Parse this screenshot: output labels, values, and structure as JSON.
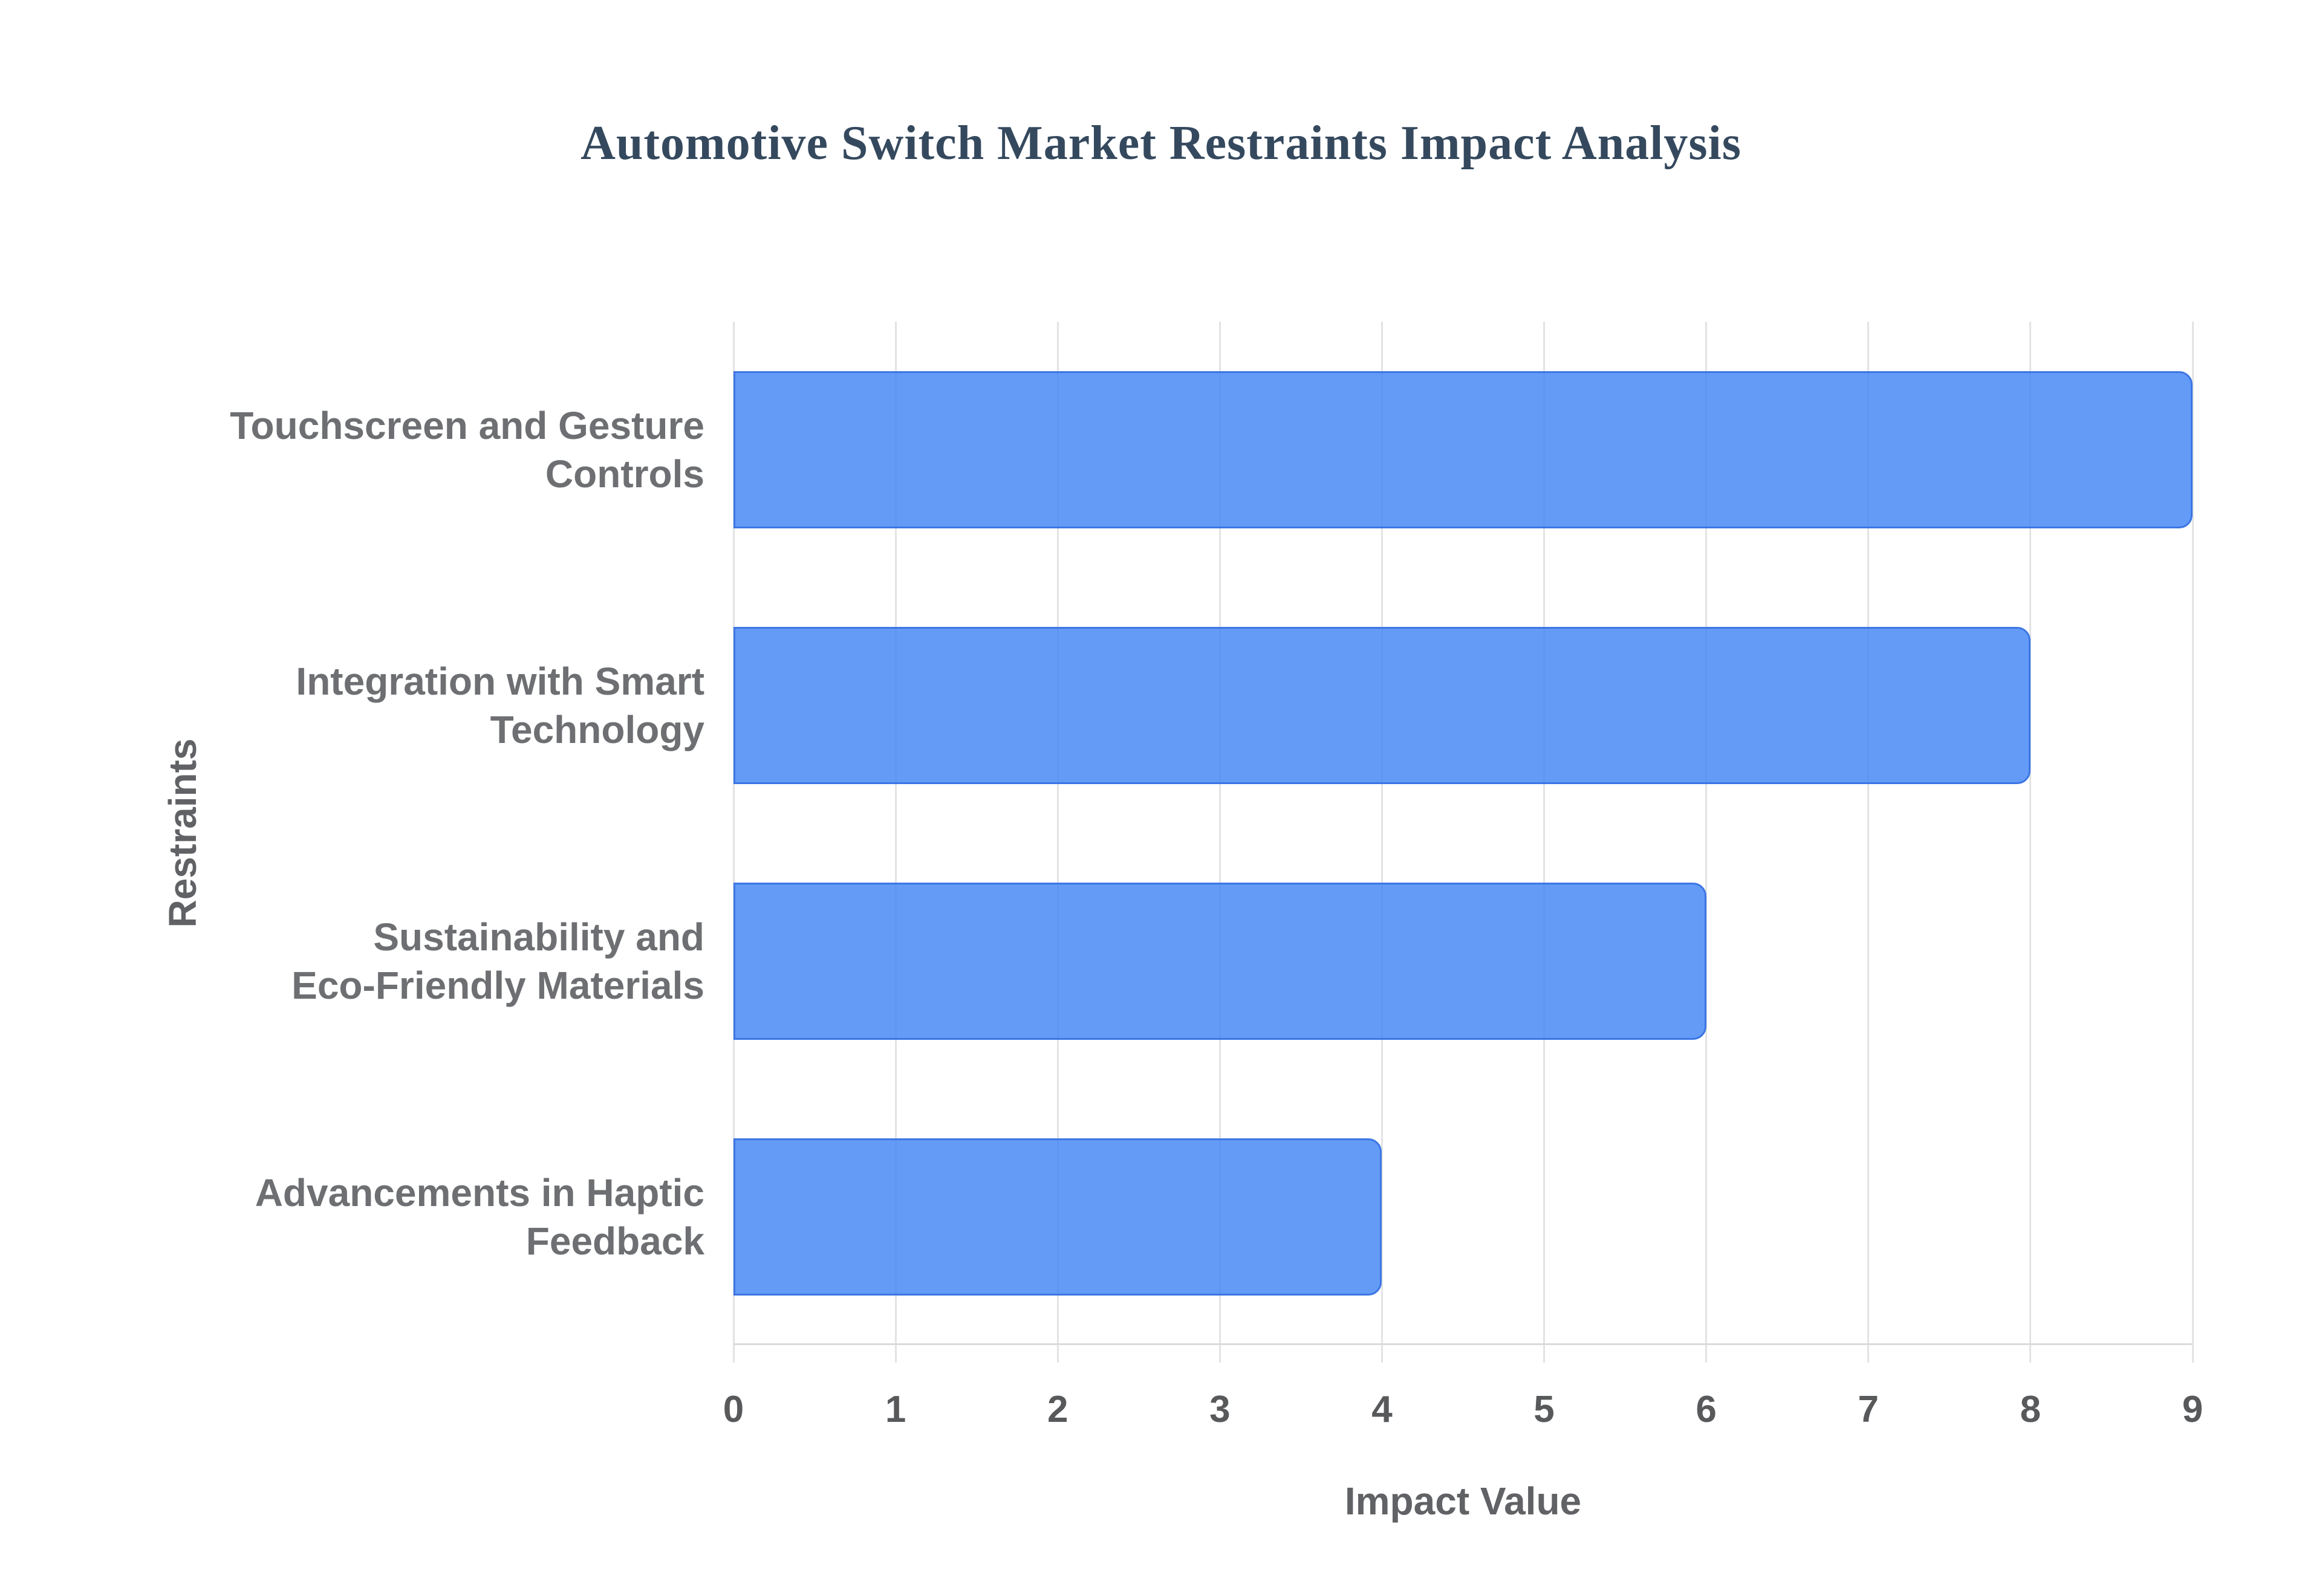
{
  "page": {
    "background": "#ffffff"
  },
  "chart_data": {
    "type": "bar",
    "orientation": "horizontal",
    "title": "Automotive Switch Market Restraints Impact Analysis",
    "categories": [
      "Touchscreen and Gesture Controls",
      "Integration with Smart Technology",
      "Sustainability and Eco-Friendly Materials",
      "Advancements in Haptic Feedback"
    ],
    "category_label_lines": [
      [
        "Touchscreen and Gesture",
        "Controls"
      ],
      [
        "Integration with Smart",
        "Technology"
      ],
      [
        "Sustainability and",
        "Eco-Friendly Materials"
      ],
      [
        "Advancements in Haptic",
        "Feedback"
      ]
    ],
    "values": [
      9,
      8,
      6,
      4
    ],
    "xlabel": "Impact Value",
    "ylabel": "Restraints",
    "xlim": [
      0,
      9
    ],
    "xticks": [
      0,
      1,
      2,
      3,
      4,
      5,
      6,
      7,
      8,
      9
    ],
    "grid": true,
    "legend": "none",
    "colors": {
      "bar_base": "#4285F4",
      "bar_fill": "#5E96F5",
      "bar_border": "#3C76E4",
      "gridline": "#E3E3E3",
      "axis_line": "#DBDBDB",
      "tick_text": "#58595B",
      "category_text": "#6D6F72",
      "axis_title_text": "#606265",
      "title_text": "#35495E",
      "background": "#FFFFFF"
    }
  }
}
